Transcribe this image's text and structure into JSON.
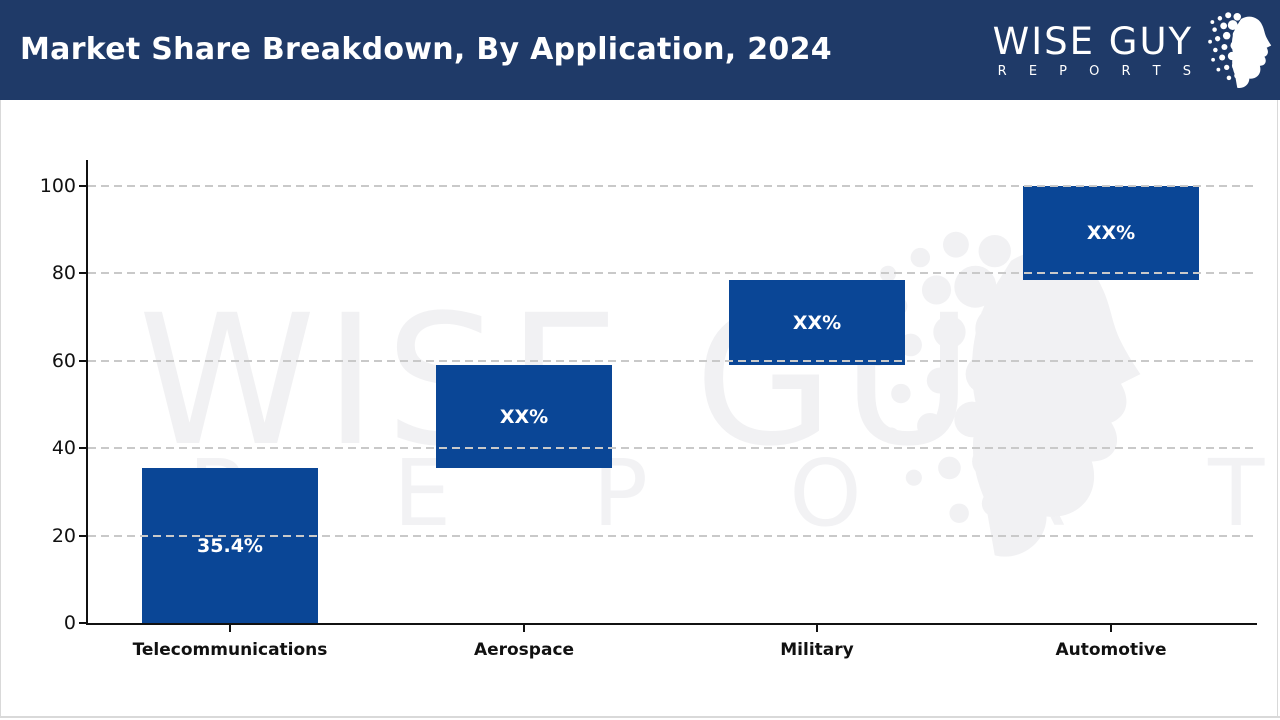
{
  "header": {
    "background_color": "#1f3a68",
    "title": "Market Share Breakdown, By Application, 2024",
    "logo": {
      "brand_line1": "WISE GUY",
      "brand_line2": "R E P O R T S",
      "icon": "face-profile-dots"
    }
  },
  "watermark": {
    "text_line1": "WISE GUY",
    "text_line2": "R E P O R T S"
  },
  "chart_data": {
    "type": "bar",
    "variant": "waterfall",
    "title": "Market Share Breakdown, By Application, 2024",
    "categories": [
      "Telecommunications",
      "Aerospace",
      "Military",
      "Automotive"
    ],
    "segments": [
      {
        "category": "Telecommunications",
        "start": 0,
        "end": 35.4,
        "label": "35.4%"
      },
      {
        "category": "Aerospace",
        "start": 35.4,
        "end": 59,
        "label": "XX%"
      },
      {
        "category": "Military",
        "start": 59,
        "end": 78.5,
        "label": "XX%"
      },
      {
        "category": "Automotive",
        "start": 78.5,
        "end": 100,
        "label": "XX%"
      }
    ],
    "y_ticks": [
      0,
      20,
      40,
      60,
      80,
      100
    ],
    "ylim": [
      0,
      100
    ],
    "xlabel": "",
    "ylabel": "",
    "grid": "horizontal-dashed",
    "legend": "none",
    "bar_color": "#0a4696",
    "bar_label_color": "#ffffff",
    "axis_color": "#111111",
    "gridline_color": "#c9c9c9"
  }
}
